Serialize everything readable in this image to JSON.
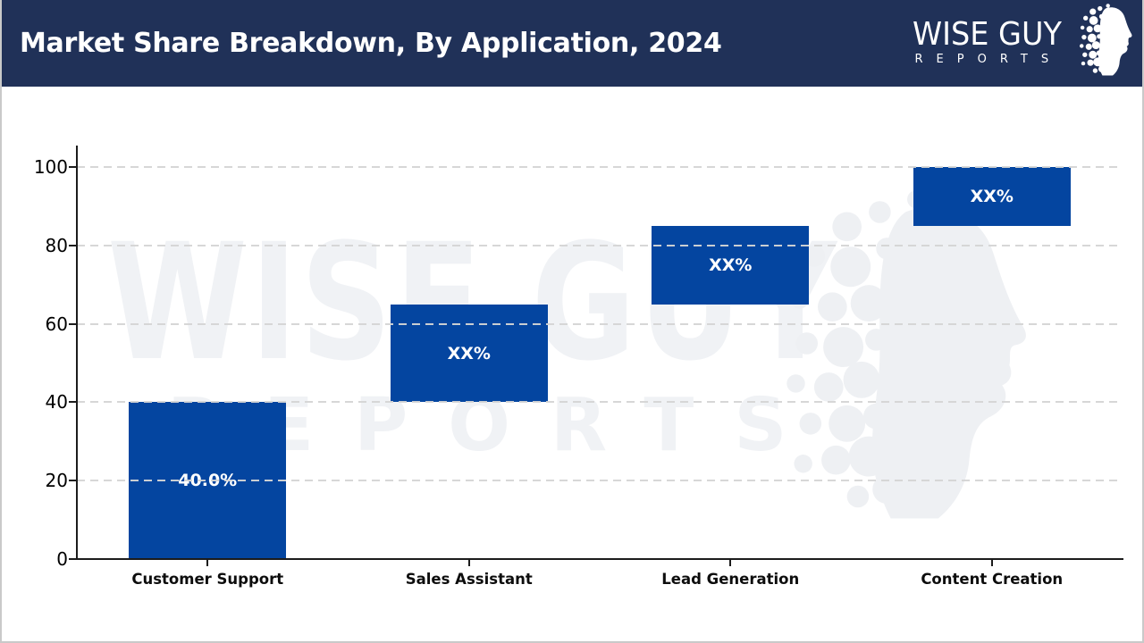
{
  "header": {
    "title": "Market Share Breakdown, By Application, 2024",
    "brand": {
      "line1": "WISE GUY",
      "line2": "REPORTS"
    }
  },
  "watermark": {
    "line1": "WISE GUY",
    "line2": "REPORTS"
  },
  "chart_data": {
    "type": "bar",
    "subtype": "waterfall",
    "title": "Market Share Breakdown, By Application, 2024",
    "categories": [
      "Customer Support",
      "Sales Assistant",
      "Lead Generation",
      "Content Creation"
    ],
    "segments": [
      {
        "category": "Customer Support",
        "start": 0,
        "end": 40,
        "label": "40.0%"
      },
      {
        "category": "Sales Assistant",
        "start": 40,
        "end": 65,
        "label": "XX%"
      },
      {
        "category": "Lead Generation",
        "start": 65,
        "end": 85,
        "label": "XX%"
      },
      {
        "category": "Content Creation",
        "start": 85,
        "end": 100,
        "label": "XX%"
      }
    ],
    "ylim": [
      0,
      105
    ],
    "yticks": [
      0,
      20,
      40,
      60,
      80,
      100
    ],
    "grid": "horizontal-dashed",
    "legend": "none",
    "bar_color": "#0445a0",
    "bar_label_color": "#ffffff"
  },
  "colors": {
    "header_bg": "#203158",
    "bar": "#0445a0",
    "grid": "#d5d5d5",
    "axis": "#1c1c1c",
    "watermark": "#f0f2f5",
    "card_border": "#c9c9c9"
  }
}
